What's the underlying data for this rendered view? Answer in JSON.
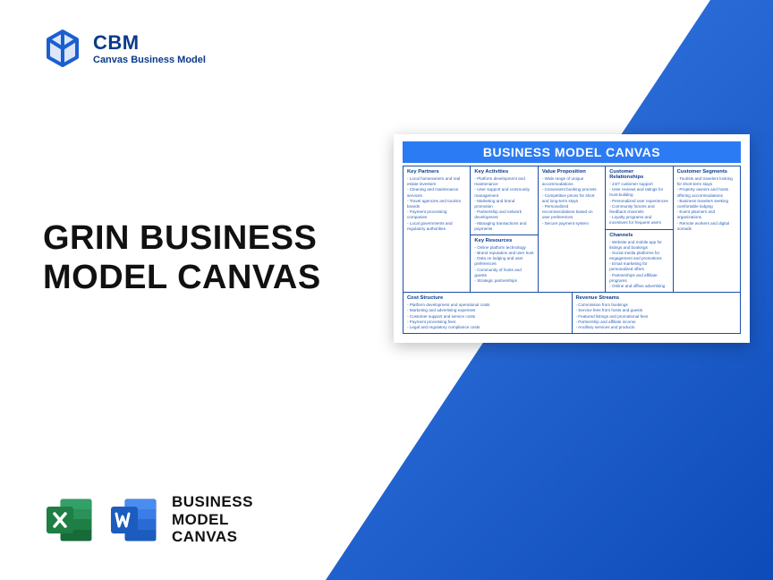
{
  "brand": {
    "title": "CBM",
    "subtitle": "Canvas Business Model",
    "logo_color": "#1a5fd1"
  },
  "headline": {
    "line1": "GRIN BUSINESS",
    "line2": "MODEL CANVAS"
  },
  "bottom_label": {
    "line1": "BUSINESS",
    "line2": "MODEL",
    "line3": "CANVAS"
  },
  "app_icons": {
    "excel_color": "#1e7e44",
    "excel_light": "#33a068",
    "word_color": "#1b5cbe",
    "word_light": "#3a7de8"
  },
  "background": {
    "blue_start": "#3a7de8",
    "blue_end": "#0d4bb8"
  },
  "canvas": {
    "title": "BUSINESS MODEL CANVAS",
    "title_bg": "#2b7bf5",
    "border_color": "#1a4fa8",
    "header_color": "#0a3a8a",
    "text_color": "#2b5fb8",
    "columns": [
      {
        "header": "Key Partners",
        "items": [
          "Local homeowners and real estate investors",
          "Cleaning and maintenance services",
          "Travel agencies and tourism boards",
          "Payment processing companies",
          "Local governments and regulatory authorities"
        ]
      },
      {
        "top": {
          "header": "Key Activities",
          "items": [
            "Platform development and maintenance",
            "User support and community management",
            "Marketing and brand promotion",
            "Partnership and network development",
            "Managing transactions and payments"
          ]
        },
        "bot": {
          "header": "Key Resources",
          "items": [
            "Online platform technology",
            "Brand reputation and user trust",
            "Data on lodging and user preferences",
            "Community of hosts and guests",
            "Strategic partnerships"
          ]
        }
      },
      {
        "header": "Value Proposition",
        "items": [
          "Wide range of unique accommodations",
          "Convenient booking process",
          "Competitive prices for short and long-term stays",
          "Personalized recommendations based on user preferences",
          "Secure payment system"
        ]
      },
      {
        "top": {
          "header": "Customer Relationships",
          "items": [
            "24/7 customer support",
            "User reviews and ratings for trust-building",
            "Personalized user experiences",
            "Community forums and feedback channels",
            "Loyalty programs and incentives for frequent users"
          ]
        },
        "bot": {
          "header": "Channels",
          "items": [
            "Website and mobile app for listings and bookings",
            "Social media platforms for engagement and promotions",
            "Email marketing for personalized offers",
            "Partnerships and affiliate programs",
            "Online and offline advertising"
          ]
        }
      },
      {
        "header": "Customer Segments",
        "items": [
          "Tourists and travelers looking for short-term stays",
          "Property owners and hosts offering accommodations",
          "Business travelers seeking comfortable lodging",
          "Event planners and organizations",
          "Remote workers and digital nomads"
        ]
      }
    ],
    "bottom": [
      {
        "header": "Cost Structure",
        "items": [
          "Platform development and operational costs",
          "Marketing and advertising expenses",
          "Customer support and service costs",
          "Payment processing fees",
          "Legal and regulatory compliance costs"
        ]
      },
      {
        "header": "Revenue Streams",
        "items": [
          "Commission from bookings",
          "Service fees from hosts and guests",
          "Featured listings and promotional fees",
          "Partnership and affiliate income",
          "Ancillary services and products"
        ]
      }
    ]
  }
}
